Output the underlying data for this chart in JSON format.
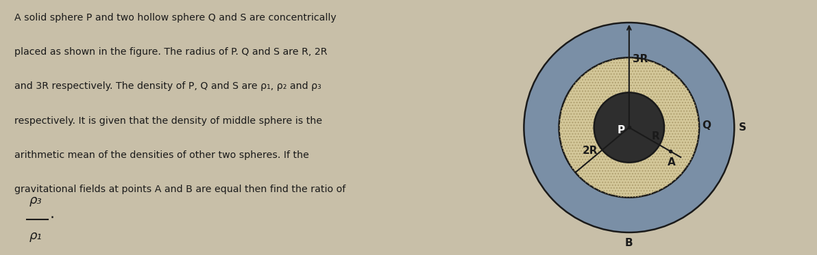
{
  "bg_color": "#c8bfa8",
  "text_color": "#1a1a1a",
  "title_lines": [
    "A solid sphere P and two hollow sphere Q and S are concentrically",
    "placed as shown in the figure. The radius of P. Q and S are R, 2R",
    "and 3R respectively. The density of P, Q and S are ρ₁, ρ₂ and ρ₃",
    "respectively. It is given that the density of middle sphere is the",
    "arithmetic mean of the densities of other two spheres. If the",
    "gravitational fields at points A and B are equal then find the ratio of"
  ],
  "fraction_num": "ρ₃",
  "fraction_den": "ρ₁",
  "diagram": {
    "r_outer": 3.0,
    "r_middle": 2.0,
    "r_inner": 1.0,
    "color_outer_ring": "#7a8fa6",
    "color_middle_ring": "#d4c89a",
    "color_inner": "#2e2e2e",
    "label_3R": "3R",
    "label_2R": "2R",
    "label_R": "R",
    "label_P": "P",
    "label_Q": "Q",
    "label_S": "S",
    "label_A": "A",
    "label_B": "B"
  }
}
